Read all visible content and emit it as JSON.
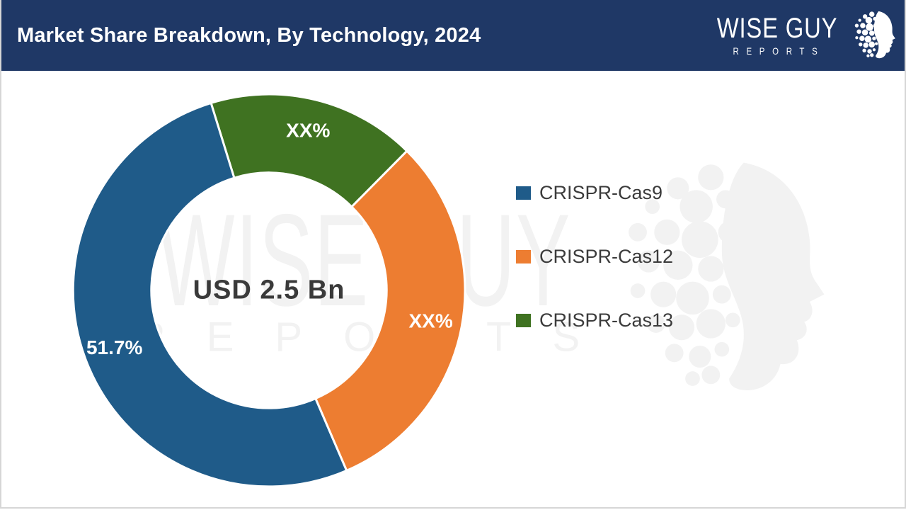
{
  "header": {
    "title": "Market Share Breakdown, By Technology, 2024",
    "brand": {
      "name": "WISE GUY",
      "subtitle": "REPORTS"
    }
  },
  "watermark": {
    "line1": "WISE GUY",
    "line2": "REPORTS"
  },
  "chart_data": {
    "type": "pie",
    "title": "Market Share Breakdown, By Technology, 2024",
    "donut": true,
    "inner_radius_ratio": 0.6,
    "start_angle_clockwise_from_top_deg": -17.2,
    "legend_position": "right",
    "center_total_label": "USD 2.5 Bn",
    "series": [
      {
        "name": "CRISPR-Cas9",
        "value": 51.7,
        "display_label": "51.7%",
        "color": "#1f5b89"
      },
      {
        "name": "CRISPR-Cas12",
        "value": 31.1,
        "display_label": "XX%",
        "color": "#ed7d31"
      },
      {
        "name": "CRISPR-Cas13",
        "value": 17.2,
        "display_label": "XX%",
        "color": "#3f7221"
      }
    ],
    "draw_order": [
      "CRISPR-Cas13",
      "CRISPR-Cas12",
      "CRISPR-Cas9"
    ]
  },
  "colors": {
    "header_bg": "#1f3866",
    "slice_label": "#ffffff",
    "center_text": "#3a3a3a",
    "legend_text": "#3b3b3b",
    "watermark": "#f2f2f2",
    "frame_border": "#d6d6d6"
  }
}
